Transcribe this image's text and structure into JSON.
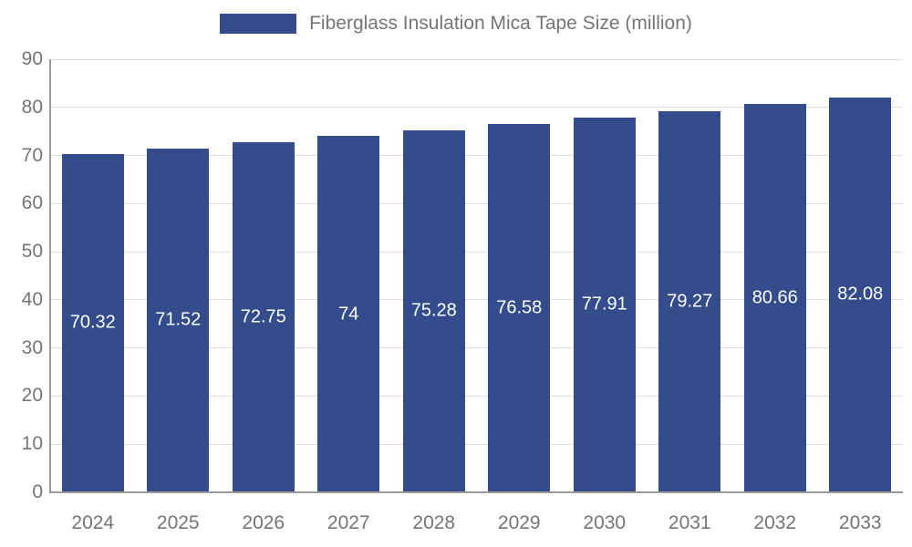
{
  "chart_data": {
    "type": "bar",
    "title": "Fiberglass Insulation Mica Tape Size (million)",
    "legend": [
      {
        "label": "Fiberglass Insulation Mica Tape Size (million)"
      }
    ],
    "categories": [
      "2024",
      "2025",
      "2026",
      "2027",
      "2028",
      "2029",
      "2030",
      "2031",
      "2032",
      "2033"
    ],
    "values": [
      70.32,
      71.52,
      72.75,
      74,
      75.28,
      76.58,
      77.91,
      79.27,
      80.66,
      82.08
    ],
    "value_labels": [
      "70.32",
      "71.52",
      "72.75",
      "74",
      "75.28",
      "76.58",
      "77.91",
      "79.27",
      "80.66",
      "82.08"
    ],
    "xlabel": "",
    "ylabel": "",
    "ylim": [
      0,
      90
    ],
    "yticks": [
      0,
      10,
      20,
      30,
      40,
      50,
      60,
      70,
      80,
      90
    ],
    "grid": "horizontal",
    "legend_position": "top-center",
    "colors": {
      "bar": "#344C8C",
      "text": "#757575",
      "gridline": "#dddddd",
      "axis": "#999999",
      "bar_label": "#ffffff"
    }
  }
}
